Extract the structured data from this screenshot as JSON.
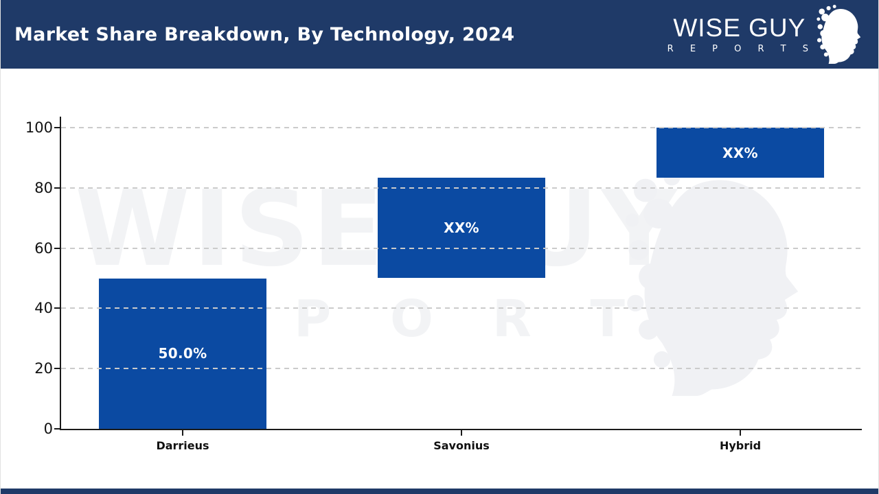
{
  "header": {
    "title": "Market Share Breakdown, By Technology, 2024",
    "logo": {
      "line1": "WISE GUY",
      "line2": "R E P O R T S"
    }
  },
  "watermark": {
    "line1": "WISE GUY",
    "line2": "R E P O R T S"
  },
  "colors": {
    "header_bg": "#1f3a68",
    "bar": "#0b4aa2",
    "gridline": "#cbcbcb",
    "watermark": "#f2f3f5",
    "footer_bg": "#1f3a68"
  },
  "chart_data": {
    "type": "bar",
    "variant": "waterfall",
    "title": "Market Share Breakdown, By Technology, 2024",
    "categories": [
      "Darrieus",
      "Savonius",
      "Hybrid"
    ],
    "series": [
      {
        "name": "Market Share",
        "segments": [
          {
            "category": "Darrieus",
            "start": 0,
            "end": 50,
            "label": "50.0%"
          },
          {
            "category": "Savonius",
            "start": 50,
            "end": 83.3,
            "label": "XX%"
          },
          {
            "category": "Hybrid",
            "start": 83.3,
            "end": 100,
            "label": "XX%"
          }
        ]
      }
    ],
    "xlabel": "",
    "ylabel": "",
    "yticks": [
      0,
      20,
      40,
      60,
      80,
      100
    ],
    "ylim": [
      0,
      105
    ],
    "grid": true,
    "grid_style": "dashed",
    "legend": false
  }
}
